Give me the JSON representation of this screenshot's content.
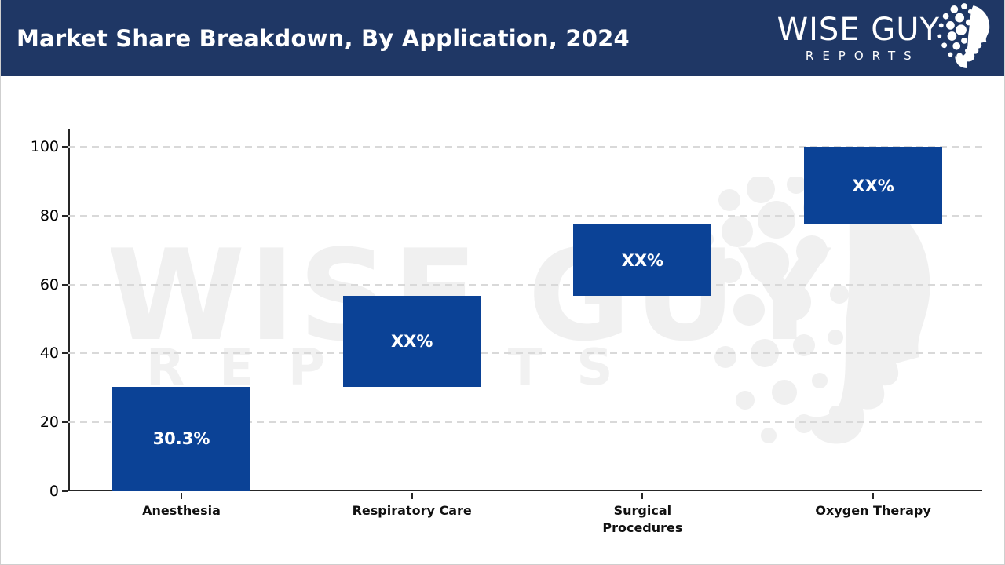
{
  "header": {
    "title": "Market Share Breakdown, By Application, 2024",
    "logo": {
      "line1": "WISE GUY",
      "line2": "REPORTS"
    }
  },
  "watermark": {
    "line1": "WISE GUY",
    "line2": "REPORTS"
  },
  "chart_data": {
    "type": "bar",
    "subtype": "waterfall-floating-bars",
    "title": "Market Share Breakdown, By Application, 2024",
    "xlabel": "",
    "ylabel": "",
    "categories": [
      "Anesthesia",
      "Respiratory Care",
      "Surgical\nProcedures",
      "Oxygen Therapy"
    ],
    "segments": [
      {
        "category": "Anesthesia",
        "start": 0,
        "end": 30.3,
        "value": 30.3,
        "label": "30.3%"
      },
      {
        "category": "Respiratory Care",
        "start": 30.3,
        "end": 56.7,
        "value": 26.4,
        "label": "XX%"
      },
      {
        "category": "Surgical Procedures",
        "start": 56.7,
        "end": 77.4,
        "value": 20.7,
        "label": "XX%"
      },
      {
        "category": "Oxygen Therapy",
        "start": 77.4,
        "end": 100,
        "value": 22.6,
        "label": "XX%"
      }
    ],
    "yticks": [
      0,
      20,
      40,
      60,
      80,
      100
    ],
    "ylim": [
      0,
      105
    ],
    "grid": "horizontal-dashed",
    "legend": "none",
    "colors": {
      "bar": "#0b4296",
      "bar_label": "#ffffff",
      "header_bg": "#1f3765",
      "header_text": "#ffffff",
      "gridline": "#d9d9d9",
      "axis": "#262626",
      "watermark": "#f0f0f0"
    }
  }
}
